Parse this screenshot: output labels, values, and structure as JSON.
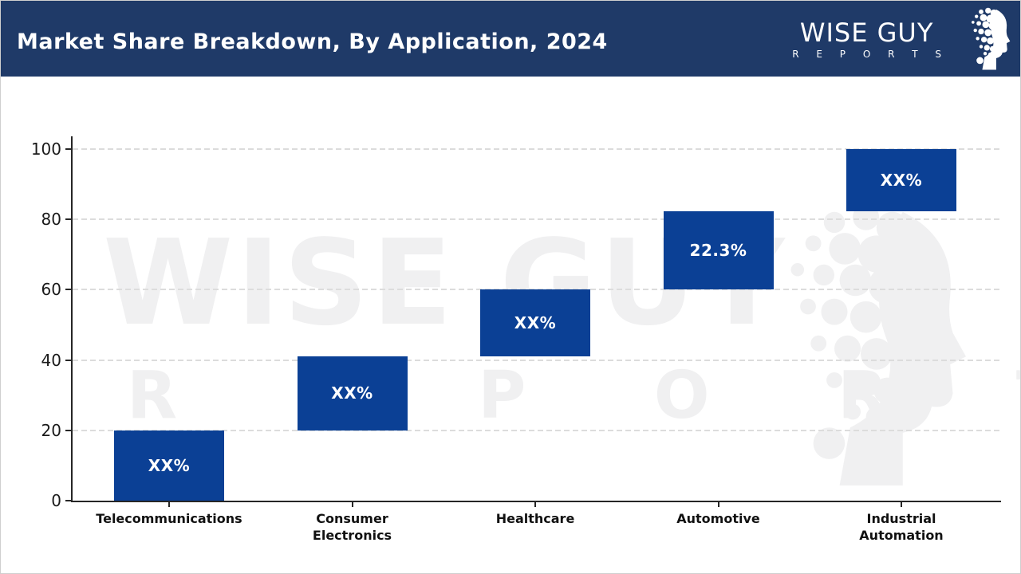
{
  "header": {
    "title": "Market Share Breakdown, By Application, 2024",
    "logo": {
      "line1": "WISE GUY",
      "line2": "R E P O R T S",
      "head_icon": "dotted-head-profile"
    }
  },
  "watermark": {
    "line1": "WISE GUY",
    "line2": "R E P O R T S"
  },
  "colors": {
    "header_bg": "#1f3a68",
    "bar": "#0b4095",
    "grid": "#dcdcdc",
    "axis": "#262626",
    "watermark": "#f0f0f1",
    "title_text": "#ffffff",
    "bar_label_text": "#ffffff"
  },
  "chart_data": {
    "type": "bar",
    "subtype": "floating-waterfall",
    "title": "Market Share Breakdown, By Application, 2024",
    "categories": [
      "Telecommunications",
      "Consumer\nElectronics",
      "Healthcare",
      "Automotive",
      "Industrial\nAutomation"
    ],
    "segments": [
      {
        "category": "Telecommunications",
        "start": 0,
        "end": 20,
        "label": "XX%"
      },
      {
        "category": "Consumer Electronics",
        "start": 20,
        "end": 41,
        "label": "XX%"
      },
      {
        "category": "Healthcare",
        "start": 41,
        "end": 60,
        "label": "XX%"
      },
      {
        "category": "Automotive",
        "start": 60,
        "end": 82.3,
        "label": "22.3%"
      },
      {
        "category": "Industrial Automation",
        "start": 82.3,
        "end": 100,
        "label": "XX%"
      }
    ],
    "bar_labels": [
      "XX%",
      "XX%",
      "XX%",
      "22.3%",
      "XX%"
    ],
    "xlabel": "",
    "ylabel": "",
    "ylim": [
      0,
      100
    ],
    "yticks": [
      0,
      20,
      40,
      60,
      80,
      100
    ],
    "grid": "dashed-horizontal",
    "legend": "none"
  }
}
